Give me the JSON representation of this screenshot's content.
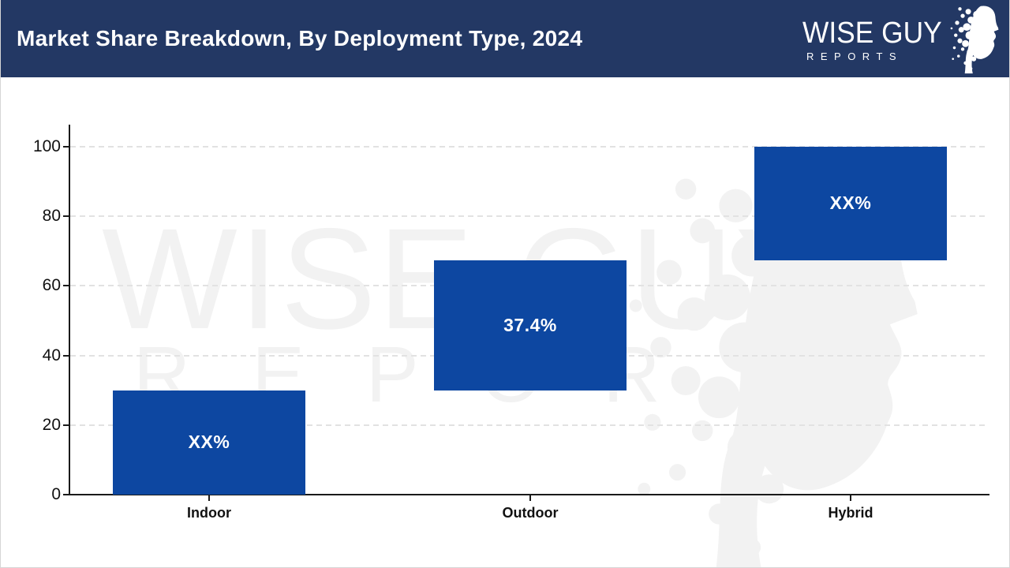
{
  "header": {
    "title": "Market Share Breakdown, By Deployment Type, 2024",
    "logo": {
      "line1": "WISE GUY",
      "line2": "REPORTS"
    }
  },
  "watermark": {
    "line1": "WISE GUY",
    "line2": "REPORTS"
  },
  "chart_data": {
    "type": "bar",
    "subtype": "floating-waterfall",
    "title": "Market Share Breakdown, By Deployment Type, 2024",
    "categories": [
      "Indoor",
      "Outdoor",
      "Hybrid"
    ],
    "series": [
      {
        "name": "Market Share (%)",
        "segments": [
          {
            "category": "Indoor",
            "start": 0,
            "end": 30,
            "label": "XX%"
          },
          {
            "category": "Outdoor",
            "start": 30,
            "end": 67.4,
            "label": "37.4%"
          },
          {
            "category": "Hybrid",
            "start": 67.4,
            "end": 100,
            "label": "XX%"
          }
        ]
      }
    ],
    "xlabel": "",
    "ylabel": "",
    "yticks": [
      0,
      20,
      40,
      60,
      80,
      100
    ],
    "ylim": [
      0,
      106
    ],
    "grid": "horizontal-dashed",
    "legend": "none"
  },
  "colors": {
    "header_bg": "#233864",
    "bar": "#0d47a1",
    "axis": "#1a1a1a",
    "grid": "#e2e2e2",
    "watermark": "#f2f2f2",
    "title_text": "#ffffff",
    "bar_label_text": "#ffffff",
    "tick_text": "#111111"
  }
}
